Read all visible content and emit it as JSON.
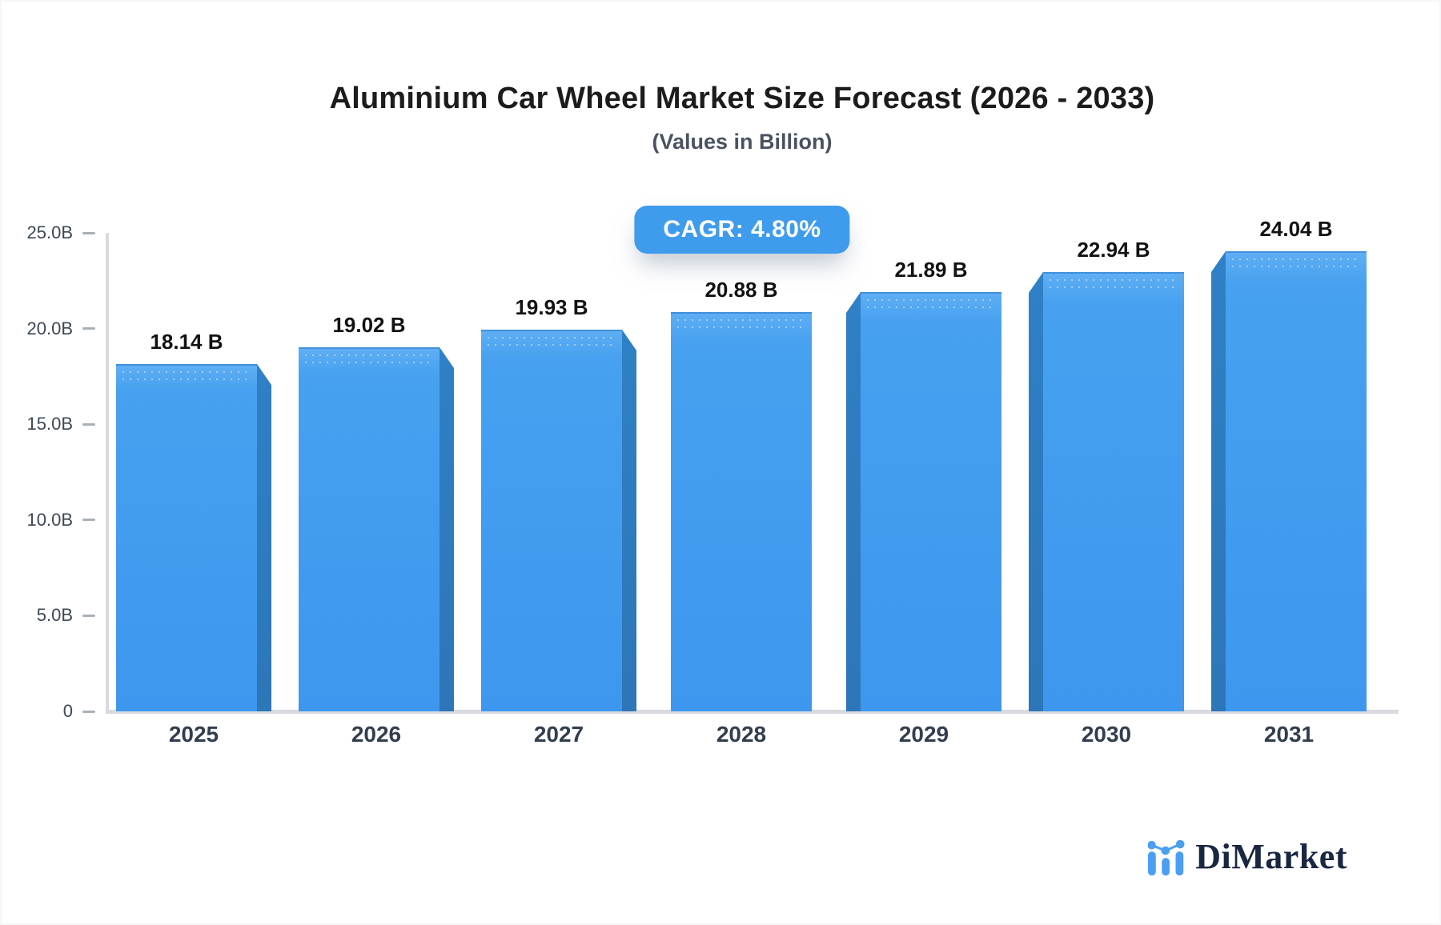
{
  "header": {
    "title": "Aluminium Car Wheel Market Size Forecast (2026 - 2033)",
    "subtitle": "(Values in Billion)",
    "cagr_label": "CAGR: 4.80%"
  },
  "chart_data": {
    "type": "bar",
    "title": "Aluminium Car Wheel Market Size Forecast (2026 - 2033)",
    "subtitle": "(Values in Billion)",
    "categories": [
      "2025",
      "2026",
      "2027",
      "2028",
      "2029",
      "2030",
      "2031"
    ],
    "values": [
      18.14,
      19.02,
      19.93,
      20.88,
      21.89,
      22.94,
      24.04
    ],
    "bar_labels": [
      "18.14 B",
      "19.02 B",
      "19.93 B",
      "20.88 B",
      "21.89 B",
      "22.94 B",
      "24.04 B"
    ],
    "annotations": [
      {
        "type": "badge",
        "text": "CAGR: 4.80%"
      }
    ],
    "xlabel": "",
    "ylabel": "",
    "ylim": [
      0,
      25
    ],
    "yticks": [
      {
        "value": 0,
        "label": "0"
      },
      {
        "value": 5,
        "label": "5.0B"
      },
      {
        "value": 10,
        "label": "10.0B"
      },
      {
        "value": 15,
        "label": "15.0B"
      },
      {
        "value": 20,
        "label": "20.0B"
      },
      {
        "value": 25,
        "label": "25.0B"
      }
    ],
    "grid": false,
    "legend": false,
    "colors": {
      "bar_face": "#419CF0",
      "bar_face_light": "#5EAEF3",
      "bar_side": "#2E7ABC",
      "badge_bg": "#3F9CEC",
      "axis_line": "#D7DBDF",
      "tick_text": "#3C4856",
      "value_text": "#121212",
      "title_text": "#1C1C1E",
      "subtitle_text": "#4A5260"
    }
  },
  "branding": {
    "logo_text": "DiMarket",
    "logo_icon": "mini-bar-chart-icon",
    "logo_text_color": "#1A2742",
    "logo_icon_color": "#4B9FF1"
  }
}
